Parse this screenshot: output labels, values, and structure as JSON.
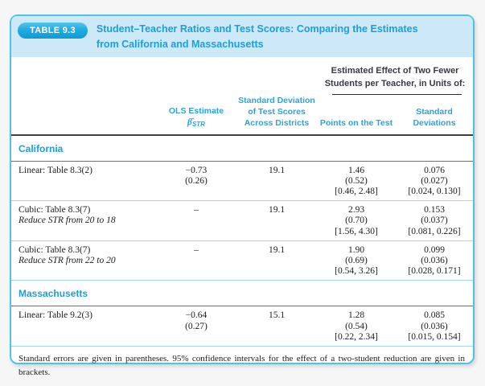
{
  "theme": {
    "accent_blue": "#1b9fdb",
    "band_background": "#cde9f7",
    "card_border": "#4fc2eb",
    "heavy_rule": "#3e3d46",
    "light_rule": "#a3d7f0"
  },
  "header": {
    "badge": "TABLE 9.3",
    "title": "Student–Teacher Ratios and Test Scores: Comparing the Estimates from California and Massachusetts"
  },
  "columns": {
    "span_header": {
      "line1": "Estimated Effect of Two Fewer",
      "line2": "Students per Teacher, in Units of:"
    },
    "ols": {
      "line1": "OLS Estimate",
      "symbol": "β̂",
      "symbol_sub": "STR"
    },
    "sd": {
      "line1": "Standard Deviation",
      "line2": "of Test Scores",
      "line3": "Across Districts"
    },
    "points": {
      "line1": "Points on the Test"
    },
    "sd_units": {
      "line1": "Standard",
      "line2": "Deviations"
    }
  },
  "sections": [
    {
      "name": "California",
      "rows": [
        {
          "label": "Linear: Table 8.3(2)",
          "sublabel": "",
          "ols": [
            "−0.73",
            "(0.26)"
          ],
          "sd": [
            "19.1"
          ],
          "points": [
            "1.46",
            "(0.52)",
            "[0.46, 2.48]"
          ],
          "sd_units": [
            "0.076",
            "(0.027)",
            "[0.024, 0.130]"
          ]
        },
        {
          "label": "Cubic: Table 8.3(7)",
          "sublabel": "Reduce STR from 20 to 18",
          "ols": [
            "–"
          ],
          "sd": [
            "19.1"
          ],
          "points": [
            "2.93",
            "(0.70)",
            "[1.56, 4.30]"
          ],
          "sd_units": [
            "0.153",
            "(0.037)",
            "[0.081, 0.226]"
          ]
        },
        {
          "label": "Cubic: Table 8.3(7)",
          "sublabel": "Reduce STR from 22 to 20",
          "ols": [
            "–"
          ],
          "sd": [
            "19.1"
          ],
          "points": [
            "1.90",
            "(0.69)",
            "[0.54, 3.26]"
          ],
          "sd_units": [
            "0.099",
            "(0.036)",
            "[0.028, 0.171]"
          ]
        }
      ]
    },
    {
      "name": "Massachusetts",
      "rows": [
        {
          "label": "Linear: Table 9.2(3)",
          "sublabel": "",
          "ols": [
            "−0.64",
            "(0.27)"
          ],
          "sd": [
            "15.1"
          ],
          "points": [
            "1.28",
            "(0.54)",
            "[0.22, 2.34]"
          ],
          "sd_units": [
            "0.085",
            "(0.036)",
            "[0.015, 0.154]"
          ]
        }
      ]
    }
  ],
  "footnote": "Standard errors are given in parentheses. 95% confidence intervals for the effect of a two-student reduction are given in brackets."
}
